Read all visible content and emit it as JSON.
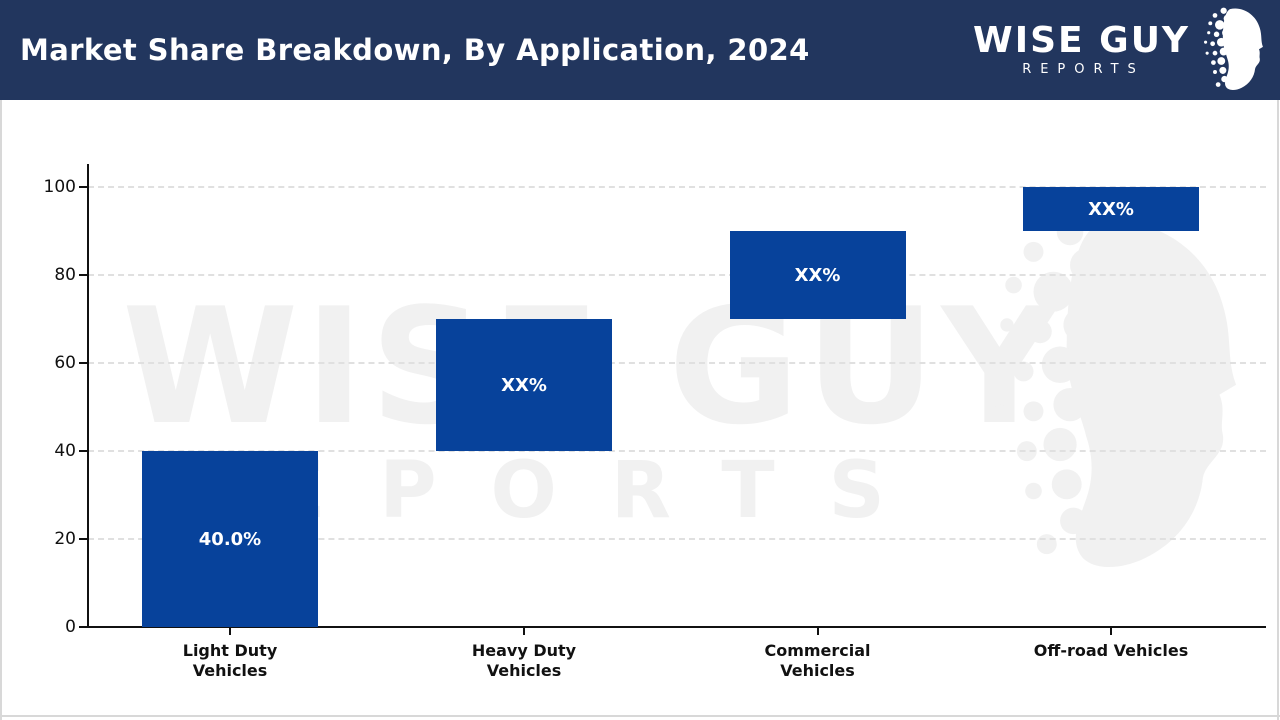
{
  "header": {
    "title": "Market Share Breakdown, By Application, 2024",
    "bg_color": "#22365e",
    "logo": {
      "line1": "WISE GUY",
      "line2": "REPORTS"
    }
  },
  "watermark": {
    "line1": "WISE GUY",
    "line2": "REPORTS"
  },
  "chart_data": {
    "type": "bar",
    "subtype": "waterfall",
    "title": "Market Share Breakdown, By Application, 2024",
    "categories": [
      "Light Duty\nVehicles",
      "Heavy Duty\nVehicles",
      "Commercial\nVehicles",
      "Off-road Vehicles"
    ],
    "segments": [
      {
        "category": "Light Duty Vehicles",
        "start": 0,
        "end": 40,
        "label": "40.0%"
      },
      {
        "category": "Heavy Duty Vehicles",
        "start": 40,
        "end": 70,
        "label": "XX%"
      },
      {
        "category": "Commercial Vehicles",
        "start": 70,
        "end": 90,
        "label": "XX%"
      },
      {
        "category": "Off-road Vehicles",
        "start": 90,
        "end": 100,
        "label": "XX%"
      }
    ],
    "ylim": [
      0,
      100
    ],
    "yticks": [
      0,
      20,
      40,
      60,
      80,
      100
    ],
    "xlabel": "",
    "ylabel": "",
    "legend": "none",
    "grid": "horizontal-dashed",
    "bar_color": "#07429b",
    "bar_label_color": "#ffffff",
    "axis_color": "#111111",
    "gridline_color": "#e0e0e0"
  }
}
